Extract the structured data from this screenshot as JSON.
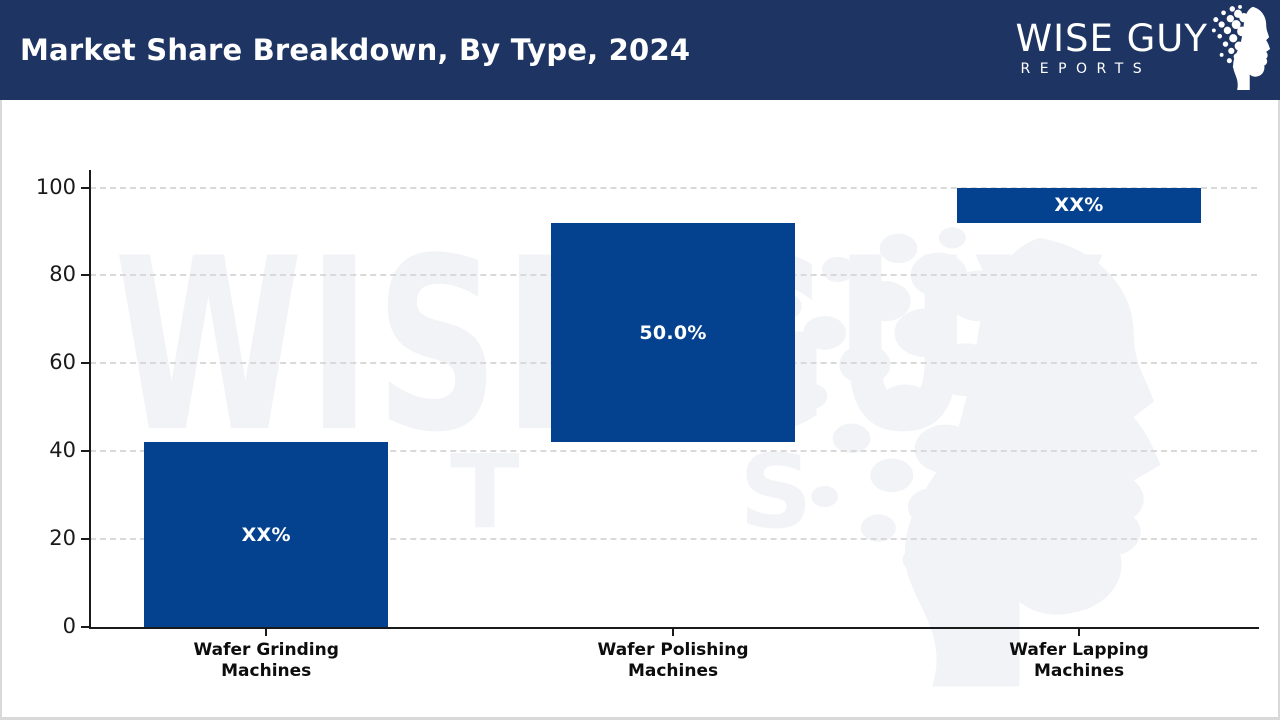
{
  "header": {
    "title": "Market Share Breakdown, By Type, 2024",
    "logo": {
      "name": "WISE GUY",
      "sub": "REPORTS"
    }
  },
  "watermark": {
    "name": "WISE GUY",
    "sub": "R T S"
  },
  "colors": {
    "header_bg": "#1e3563",
    "bar": "#04418f",
    "grid": "#d9d9d9",
    "axis": "#1a1a1a",
    "watermark": "#f2f3f6"
  },
  "chart_data": {
    "type": "bar",
    "variant": "stacked-progression (each bar starts where previous ends)",
    "title": "Market Share Breakdown, By Type, 2024",
    "categories": [
      "Wafer Grinding Machines",
      "Wafer Polishing Machines",
      "Wafer Lapping Machines"
    ],
    "bars": [
      {
        "category": "Wafer Grinding Machines",
        "base": 0,
        "value": 42,
        "label": "XX%"
      },
      {
        "category": "Wafer Polishing Machines",
        "base": 42,
        "value": 50,
        "label": "50.0%"
      },
      {
        "category": "Wafer Lapping Machines",
        "base": 92,
        "value": 8,
        "label": "XX%"
      }
    ],
    "xlabel": "",
    "ylabel": "",
    "yticks": [
      0,
      20,
      40,
      60,
      80,
      100
    ],
    "ylim": [
      0,
      104
    ],
    "grid": "horizontal-dashed",
    "legend": "none",
    "bar_color": "#04418f",
    "bar_label_color": "#ffffff"
  }
}
